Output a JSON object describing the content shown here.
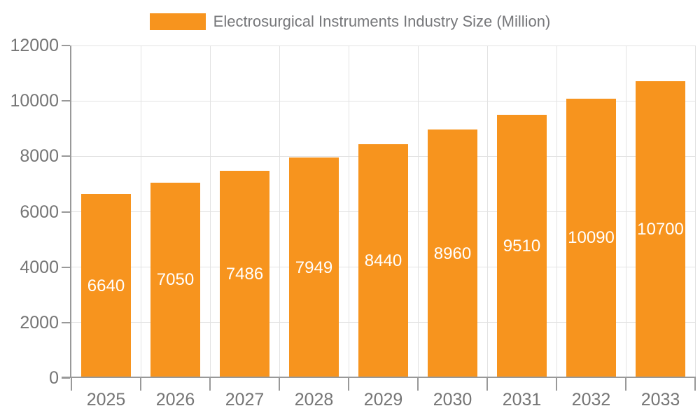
{
  "chart_data": {
    "type": "bar",
    "title": "Electrosurgical Instruments Industry Size (Million)",
    "legend": [
      {
        "label": "Electrosurgical Instruments Industry Size (Million)",
        "color": "#F7941E"
      }
    ],
    "legend_position": "top",
    "categories": [
      "2025",
      "2026",
      "2027",
      "2028",
      "2029",
      "2030",
      "2031",
      "2032",
      "2033"
    ],
    "series": [
      {
        "name": "Electrosurgical Instruments Industry Size (Million)",
        "values": [
          6640,
          7050,
          7486,
          7949,
          8440,
          8960,
          9510,
          10090,
          10700
        ]
      }
    ],
    "bar_labels": [
      "6640",
      "7050",
      "7486",
      "7949",
      "8440",
      "8960",
      "9510",
      "10090",
      "10700"
    ],
    "xlabel": "",
    "ylabel": "",
    "ylim": [
      0,
      12000
    ],
    "yticks": [
      0,
      2000,
      4000,
      6000,
      8000,
      10000,
      12000
    ],
    "ytick_labels": [
      "0",
      "2000",
      "4000",
      "6000",
      "8000",
      "10000",
      "12000"
    ],
    "grid": true,
    "colors": {
      "bar": "#F7941E",
      "grid": "#E2E2E2",
      "axis": "#999999",
      "tick_label": "#757575",
      "legend_text": "#76777A",
      "bar_label": "#FFFFFF",
      "background": "#FFFFFF"
    }
  }
}
